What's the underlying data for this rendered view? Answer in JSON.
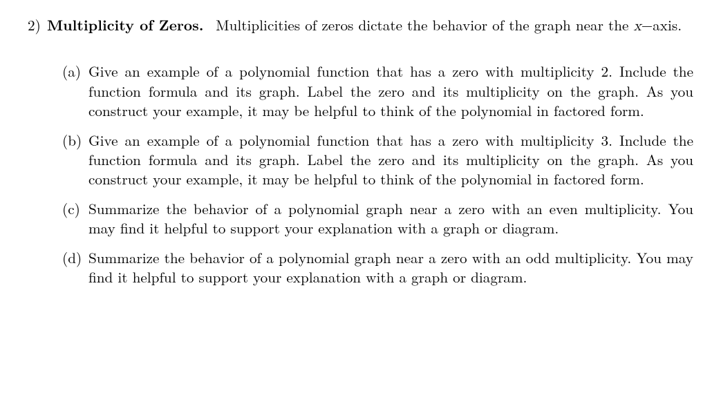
{
  "colors": {
    "text": "#000000",
    "background": "#ffffff"
  },
  "typography": {
    "base_fontsize_pt": 16,
    "line_height": 1.34,
    "font_family": "Computer Modern / Latin Modern Roman serif"
  },
  "problem": {
    "number": "2)",
    "title_bold": "Multiplicity of Zeros.",
    "intro_part1": "Multiplicities of zeros dictate the behavior of the graph near the ",
    "intro_math": "x",
    "intro_part2": "−axis."
  },
  "items": {
    "a": {
      "label": "(a)",
      "text": "Give an example of a polynomial function that has a zero with multiplicity 2. Include the function formula and its graph. Label the zero and its multiplicity on the graph. As you construct your example, it may be helpful to think of the polynomial in factored form."
    },
    "b": {
      "label": "(b)",
      "text": "Give an example of a polynomial function that has a zero with multiplicity 3. Include the function formula and its graph. Label the zero and its multiplicity on the graph. As you construct your example, it may be helpful to think of the polynomial in factored form."
    },
    "c": {
      "label": "(c)",
      "text": "Summarize the behavior of a polynomial graph near a zero with an even multiplicity. You may find it helpful to support your explanation with a graph or diagram."
    },
    "d": {
      "label": "(d)",
      "text": "Summarize the behavior of a polynomial graph near a zero with an odd multiplicity. You may find it helpful to support your explanation with a graph or diagram."
    }
  }
}
